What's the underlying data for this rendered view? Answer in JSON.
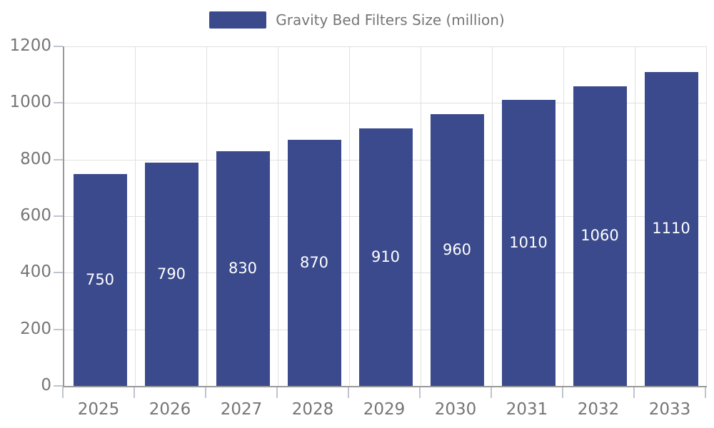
{
  "chart_data": {
    "type": "bar",
    "title": "Gravity Bed Filters Size (million)",
    "legend_position": "top",
    "categories": [
      "2025",
      "2026",
      "2027",
      "2028",
      "2029",
      "2030",
      "2031",
      "2032",
      "2033"
    ],
    "values": [
      750,
      790,
      830,
      870,
      910,
      960,
      1010,
      1060,
      1110
    ],
    "series": [
      {
        "name": "Gravity Bed Filters Size (million)",
        "values": [
          750,
          790,
          830,
          870,
          910,
          960,
          1010,
          1060,
          1110
        ]
      }
    ],
    "xlabel": "",
    "ylabel": "",
    "ylim": [
      0,
      1200
    ],
    "yticks": [
      0,
      200,
      400,
      600,
      800,
      1000,
      1200
    ],
    "grid": true,
    "value_labels_inside_bars": true,
    "colors": {
      "bar": "#3A4A8C",
      "value_label": "#FFFFFF",
      "axis_text": "#757575",
      "legend_text": "#757575",
      "gridline": "#E0E0E0",
      "axis_line": "#999999",
      "tick": "#BFC4CE",
      "background": "#FFFFFF"
    }
  }
}
